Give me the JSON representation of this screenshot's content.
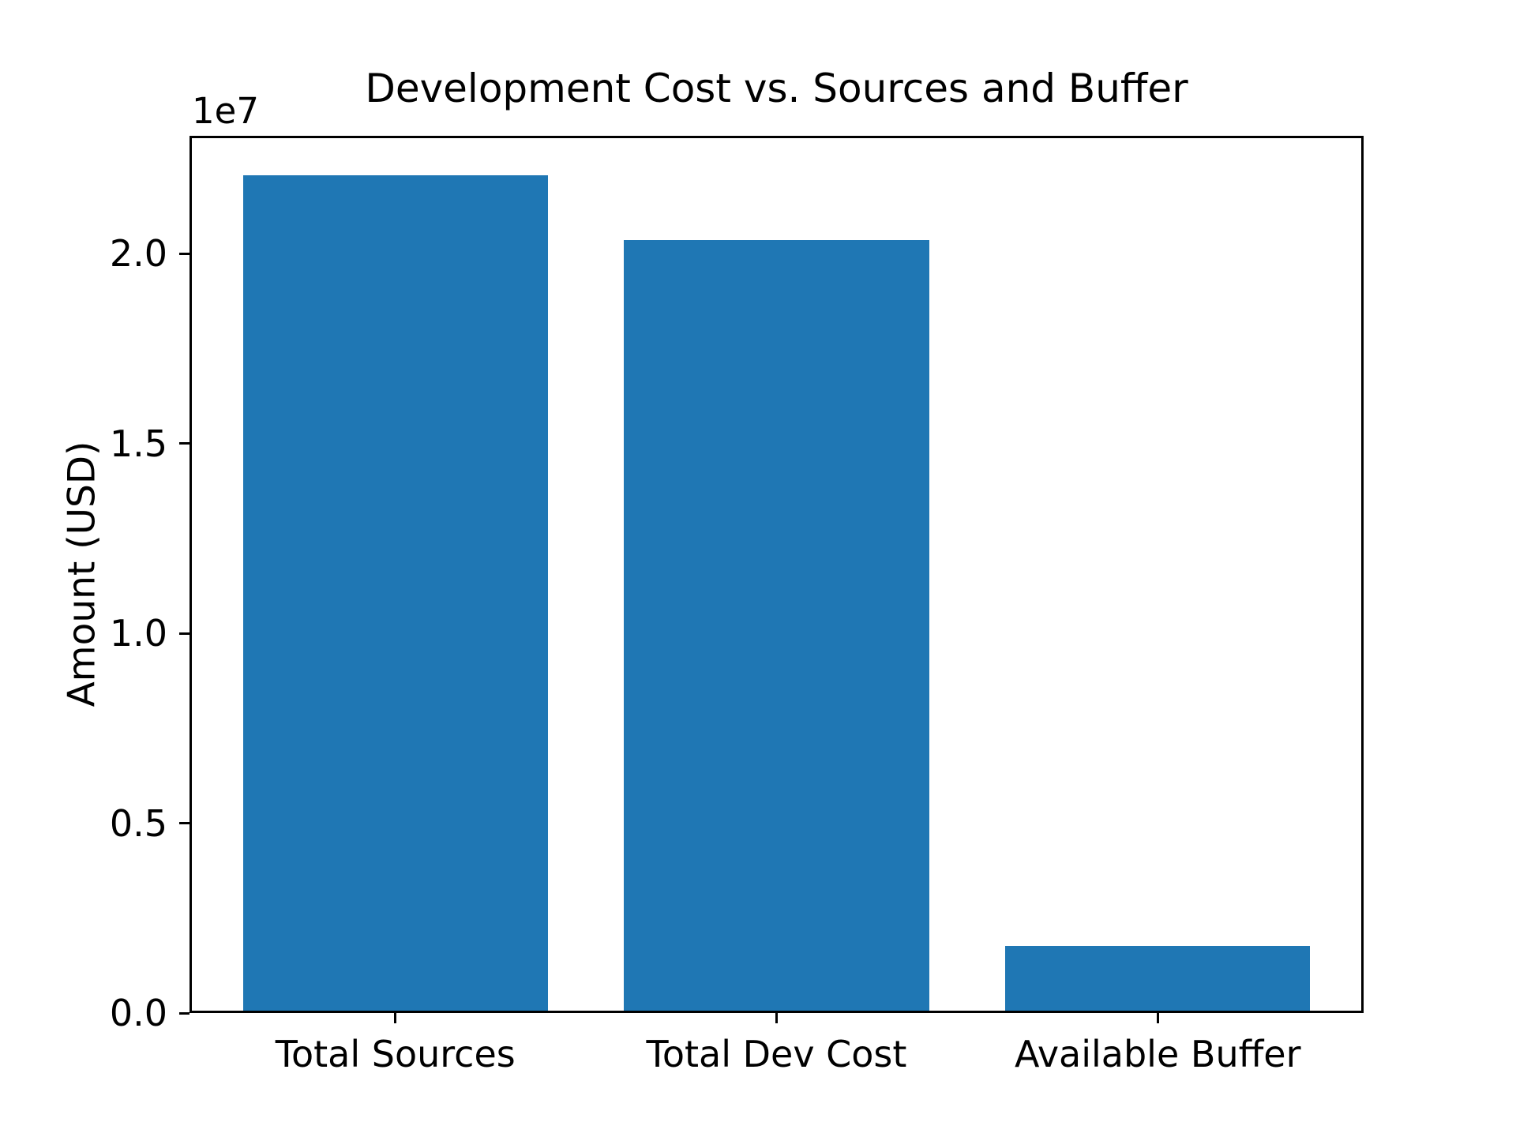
{
  "chart_data": {
    "type": "bar",
    "title": "Development Cost vs. Sources and Buffer",
    "categories": [
      "Total Sources",
      "Total Dev Cost",
      "Available Buffer"
    ],
    "values": [
      22000000,
      20300000,
      1700000
    ],
    "xlabel": "",
    "ylabel": "Amount (USD)",
    "ylim": [
      0,
      23100000
    ],
    "yticks": [
      0,
      5000000,
      10000000,
      15000000,
      20000000
    ],
    "ytick_labels": [
      "0.0",
      "0.5",
      "1.0",
      "1.5",
      "2.0"
    ],
    "y_offset_text": "1e7",
    "bar_color": "#1f77b4",
    "spine_color": "#000000",
    "grid": false,
    "legend_position": "none"
  }
}
